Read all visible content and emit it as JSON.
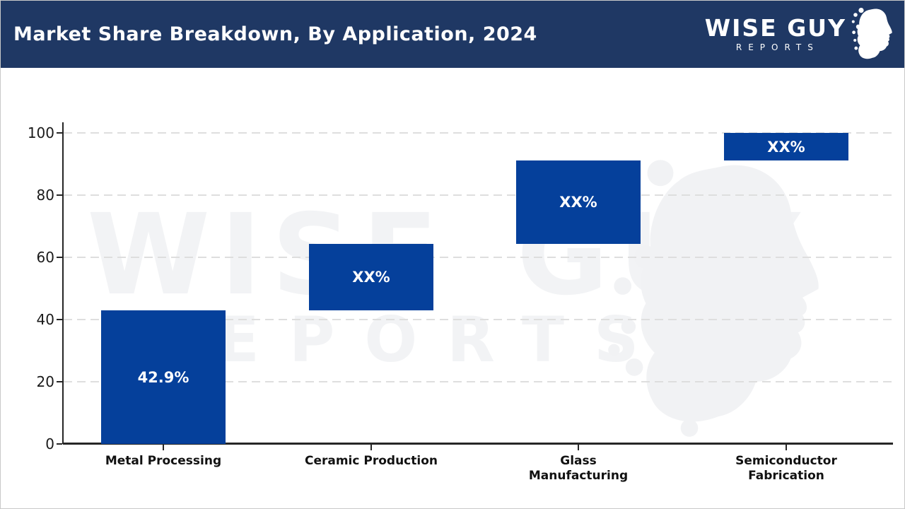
{
  "header": {
    "title": "Market Share Breakdown, By Application, 2024",
    "logo": {
      "line1": "WISE GUY",
      "line2": "REPORTS"
    }
  },
  "watermark": {
    "line1": "WISE GUY",
    "line2": "REPORTS"
  },
  "chart_data": {
    "type": "bar",
    "subtype": "waterfall",
    "title": "Market Share Breakdown, By Application, 2024",
    "categories": [
      "Metal Processing",
      "Ceramic Production",
      "Glass Manufacturing",
      "Semiconductor Fabrication"
    ],
    "bars": [
      {
        "category": "Metal Processing",
        "start": 0,
        "end": 42.9,
        "label": "42.9%"
      },
      {
        "category": "Ceramic Production",
        "start": 42.9,
        "end": 64.3,
        "label": "XX%"
      },
      {
        "category": "Glass Manufacturing",
        "start": 64.3,
        "end": 91.1,
        "label": "XX%"
      },
      {
        "category": "Semiconductor Fabrication",
        "start": 91.1,
        "end": 100,
        "label": "XX%"
      }
    ],
    "yticks": [
      0,
      20,
      40,
      60,
      80,
      100
    ],
    "ylim": [
      0,
      100
    ],
    "xlabel": "",
    "ylabel": "",
    "grid": "horizontal-dashed",
    "legend": "none",
    "bar_color": "#05409b",
    "header_color": "#1f3864",
    "value_label_color": "#ffffff"
  }
}
